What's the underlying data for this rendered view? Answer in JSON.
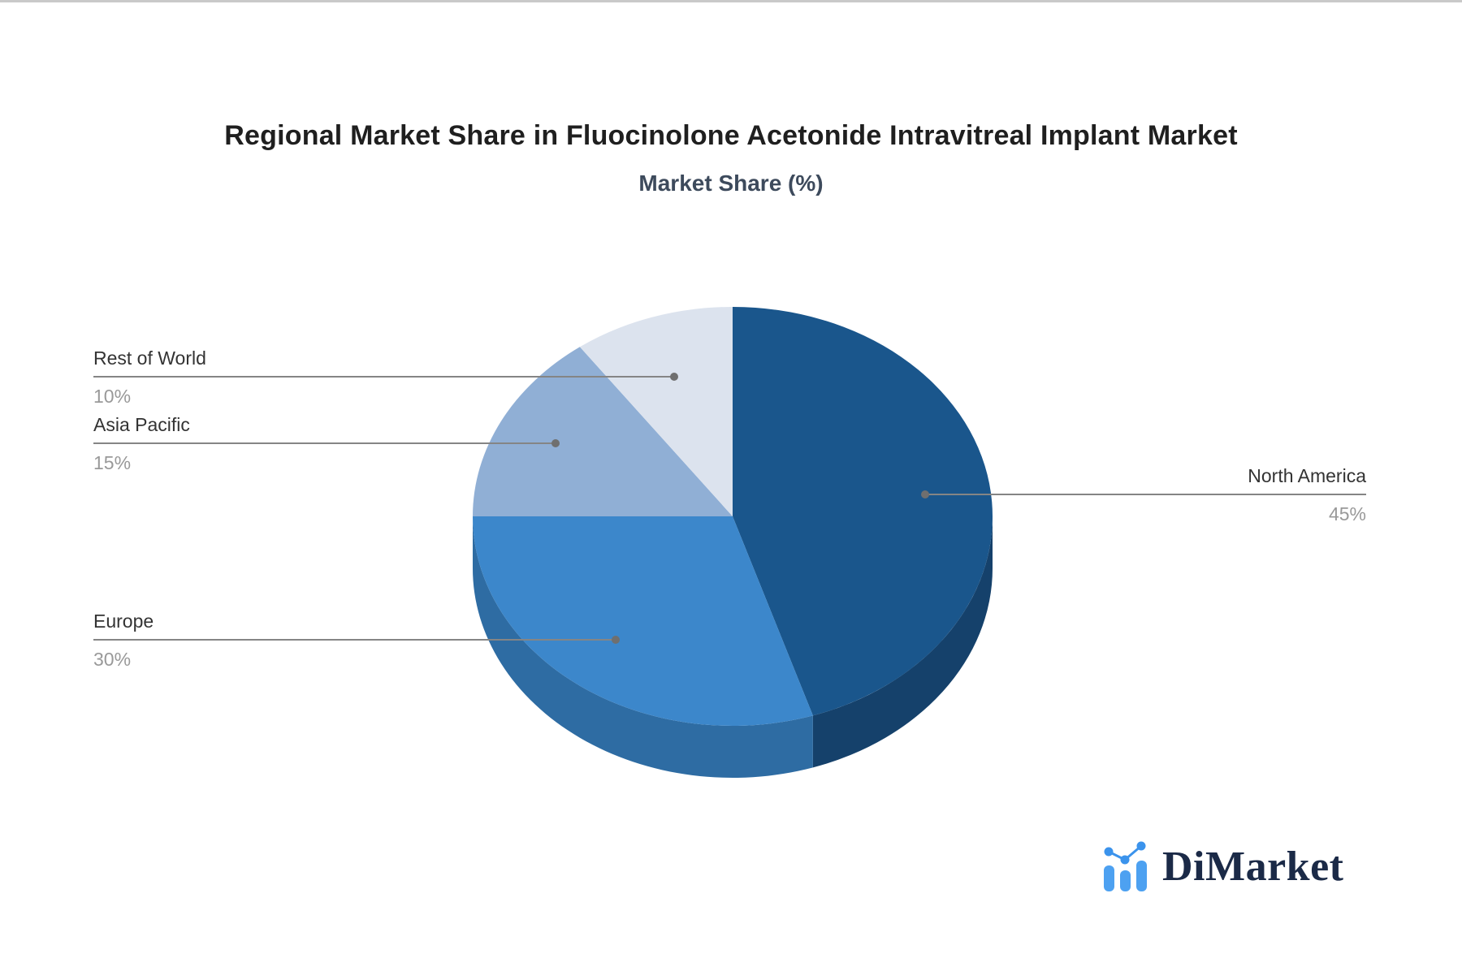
{
  "chart_data": {
    "type": "pie",
    "title": "Regional Market Share in Fluocinolone Acetonide Intravitreal Implant Market",
    "subtitle": "Market Share (%)",
    "unit": "%",
    "start_angle_deg": 0,
    "direction": "clockwise",
    "effect": "3d-depth",
    "legend_position": "none",
    "slices": [
      {
        "label": "North America",
        "value": 45,
        "value_text": "45%",
        "color": "#1A568C",
        "depth_color": "#15416B",
        "label_side": "right"
      },
      {
        "label": "Europe",
        "value": 30,
        "value_text": "30%",
        "color": "#3C87CB",
        "depth_color": "#2E6CA3",
        "label_side": "left"
      },
      {
        "label": "Asia Pacific",
        "value": 15,
        "value_text": "15%",
        "color": "#90AFD5",
        "depth_color": "#718FB5",
        "label_side": "left"
      },
      {
        "label": "Rest of World",
        "value": 10,
        "value_text": "10%",
        "color": "#DCE3EE",
        "depth_color": "#B7C3D6",
        "label_side": "left"
      }
    ],
    "label_color": "#333333",
    "value_color": "#999999",
    "leader_line_color": "#858585",
    "leader_dot_color": "#6f6f6f"
  },
  "titles": {
    "title": "Regional Market Share in Fluocinolone Acetonide Intravitreal Implant Market",
    "subtitle": "Market Share (%)"
  },
  "logo": {
    "text": "DiMarket",
    "icon": "bar-chart-with-trend-line",
    "bar_color": "#4DA1F1",
    "accent_color": "#3B93EC",
    "text_color": "#1B2A47"
  },
  "page": {
    "background": "#ffffff",
    "top_border_color": "#c9c9c9"
  }
}
